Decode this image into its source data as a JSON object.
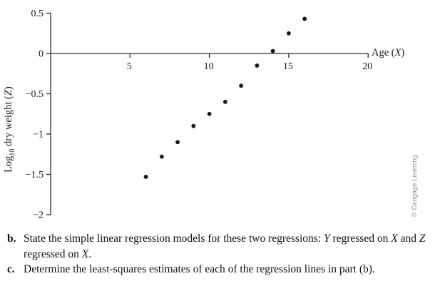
{
  "chart_data": {
    "type": "scatter",
    "title": "",
    "xlabel": "Age (X)",
    "ylabel": "Log10 dry weight (Z)",
    "x": [
      6,
      7,
      8,
      9,
      10,
      11,
      12,
      13,
      14,
      15,
      16
    ],
    "y": [
      -1.53,
      -1.28,
      -1.1,
      -0.9,
      -0.75,
      -0.6,
      -0.4,
      -0.15,
      0.03,
      0.25,
      0.43
    ],
    "xlim": [
      0,
      20
    ],
    "ylim": [
      -2,
      0.5
    ],
    "x_ticks": [
      {
        "value": 5,
        "label": "5"
      },
      {
        "value": 10,
        "label": "10"
      },
      {
        "value": 15,
        "label": "15"
      },
      {
        "value": 20,
        "label": "20"
      }
    ],
    "y_ticks": [
      {
        "value": 0.5,
        "label": "0.5"
      },
      {
        "value": 0,
        "label": "0"
      },
      {
        "value": -0.5,
        "label": "−0.5"
      },
      {
        "value": -1,
        "label": "−1"
      },
      {
        "value": -1.5,
        "label": "−1.5"
      },
      {
        "value": -2,
        "label": "−2"
      }
    ],
    "grid": false,
    "legend": null,
    "marker_color": "#151515",
    "axis_color": "#2a2a2a"
  },
  "figure": {
    "x_axis_title_segments": [
      {
        "text": "Age ("
      },
      {
        "text": "X",
        "italic": true
      },
      {
        "text": ")"
      }
    ],
    "y_axis_title_segments": [
      {
        "text": "Log"
      },
      {
        "text": "10",
        "sub": true
      },
      {
        "text": " dry weight ("
      },
      {
        "text": "Z",
        "italic": true
      },
      {
        "text": ")"
      }
    ],
    "credit": "© Cengage Learning"
  },
  "questions": [
    {
      "label": "b.",
      "segments": [
        {
          "text": "State the simple linear regression models for these two regressions: "
        },
        {
          "text": "Y",
          "italic": true
        },
        {
          "text": " regressed on "
        },
        {
          "text": "X",
          "italic": true
        },
        {
          "text": " and "
        },
        {
          "text": "Z",
          "italic": true
        },
        {
          "text": " regressed on "
        },
        {
          "text": "X",
          "italic": true
        },
        {
          "text": "."
        }
      ]
    },
    {
      "label": "c.",
      "segments": [
        {
          "text": "Determine the least-squares estimates of each of the regression lines in part (b)."
        }
      ]
    }
  ]
}
